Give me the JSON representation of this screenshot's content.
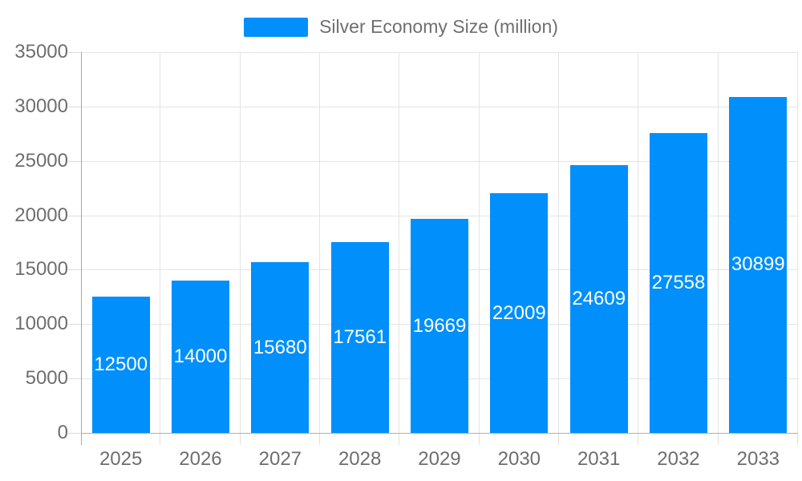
{
  "legend": {
    "label": "Silver Economy Size (million)",
    "swatch_color": "#008FFB"
  },
  "chart_data": {
    "type": "bar",
    "title": "Silver Economy Size (million)",
    "categories": [
      "2025",
      "2026",
      "2027",
      "2028",
      "2029",
      "2030",
      "2031",
      "2032",
      "2033"
    ],
    "series": [
      {
        "name": "Silver Economy Size (million)",
        "values": [
          12500,
          14000,
          15680,
          17561,
          19669,
          22009,
          24609,
          27558,
          30899
        ]
      }
    ],
    "data_labels": [
      "12500",
      "14000",
      "15680",
      "17561",
      "19669",
      "22009",
      "24609",
      "27558",
      "30899"
    ],
    "xlabel": "",
    "ylabel": "",
    "ylim": [
      0,
      35000
    ],
    "y_ticks": [
      0,
      5000,
      10000,
      15000,
      20000,
      25000,
      30000,
      35000
    ],
    "y_tick_labels": [
      "0",
      "5000",
      "10000",
      "15000",
      "20000",
      "25000",
      "30000",
      "35000"
    ],
    "grid": "both",
    "legend_position": "top",
    "colors": {
      "bar": "#008FFB",
      "gridline": "#e4e4e4",
      "axis_line": "#b0b0b0",
      "axis_text": "#6e6e6e",
      "data_label_text": "#ffffff"
    }
  }
}
